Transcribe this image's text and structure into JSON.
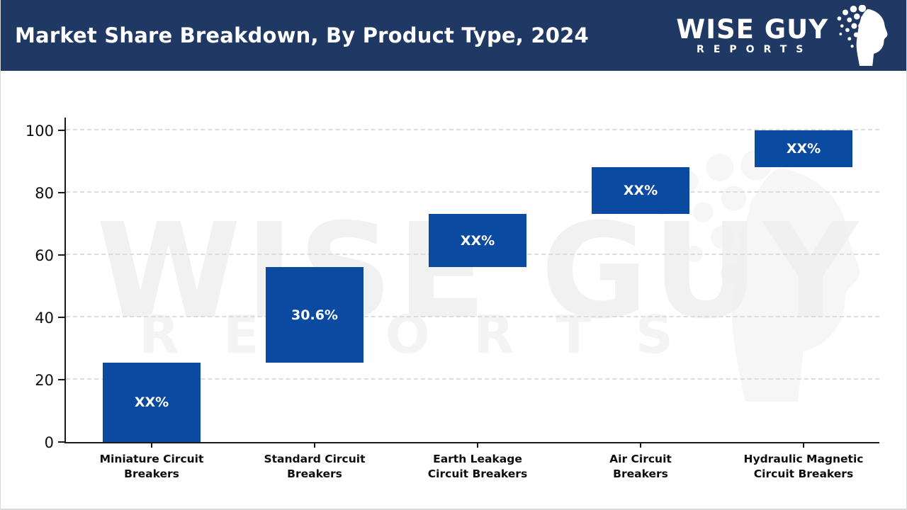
{
  "header": {
    "title": "Market Share Breakdown, By Product Type, 2024",
    "background_color": "#1f3864",
    "logo": {
      "line1": "WISE GUY",
      "line2": "REPORTS"
    }
  },
  "watermark": {
    "line1": "WISE GUY",
    "line2": "REPORTS"
  },
  "chart_data": {
    "type": "bar",
    "subtype": "floating-waterfall",
    "title": "Market Share Breakdown, By Product Type, 2024",
    "xlabel": "",
    "ylabel": "",
    "ylim": [
      0,
      100
    ],
    "yticks": [
      0,
      20,
      40,
      60,
      80,
      100
    ],
    "grid": "dashed horizontal",
    "bar_color": "#0b4aa1",
    "categories": [
      {
        "line1": "Miniature Circuit",
        "line2": "Breakers"
      },
      {
        "line1": "Standard Circuit",
        "line2": "Breakers"
      },
      {
        "line1": "Earth Leakage",
        "line2": "Circuit Breakers"
      },
      {
        "line1": "Air Circuit",
        "line2": "Breakers"
      },
      {
        "line1": "Hydraulic Magnetic",
        "line2": "Circuit Breakers"
      }
    ],
    "bars": [
      {
        "start": 0,
        "end": 25.5,
        "label": "XX%"
      },
      {
        "start": 25.5,
        "end": 56.1,
        "label": "30.6%"
      },
      {
        "start": 56.1,
        "end": 73.2,
        "label": "XX%"
      },
      {
        "start": 73.2,
        "end": 88.2,
        "label": "XX%"
      },
      {
        "start": 88.2,
        "end": 100,
        "label": "XX%"
      }
    ]
  }
}
